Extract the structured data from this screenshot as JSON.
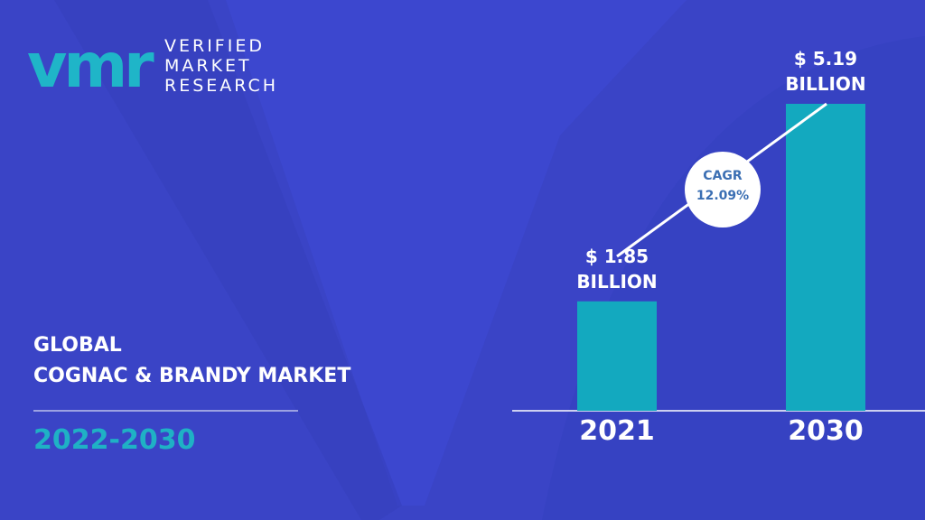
{
  "logo": {
    "mark": "vmr",
    "lines": [
      "VERIFIED",
      "MARKET",
      "RESEARCH"
    ]
  },
  "headline": {
    "title_lines": [
      "GLOBAL",
      "COGNAC & BRANDY MARKET"
    ],
    "period": "2022-2030"
  },
  "chart_data": {
    "type": "bar",
    "categories": [
      "2021",
      "2030"
    ],
    "values": [
      1.85,
      5.19
    ],
    "value_labels": [
      "$ 1.85 BILLION",
      "$ 5.19 BILLION"
    ],
    "color": "#13a9bf",
    "annotation": {
      "label": "CAGR",
      "value": "12.09%"
    }
  }
}
